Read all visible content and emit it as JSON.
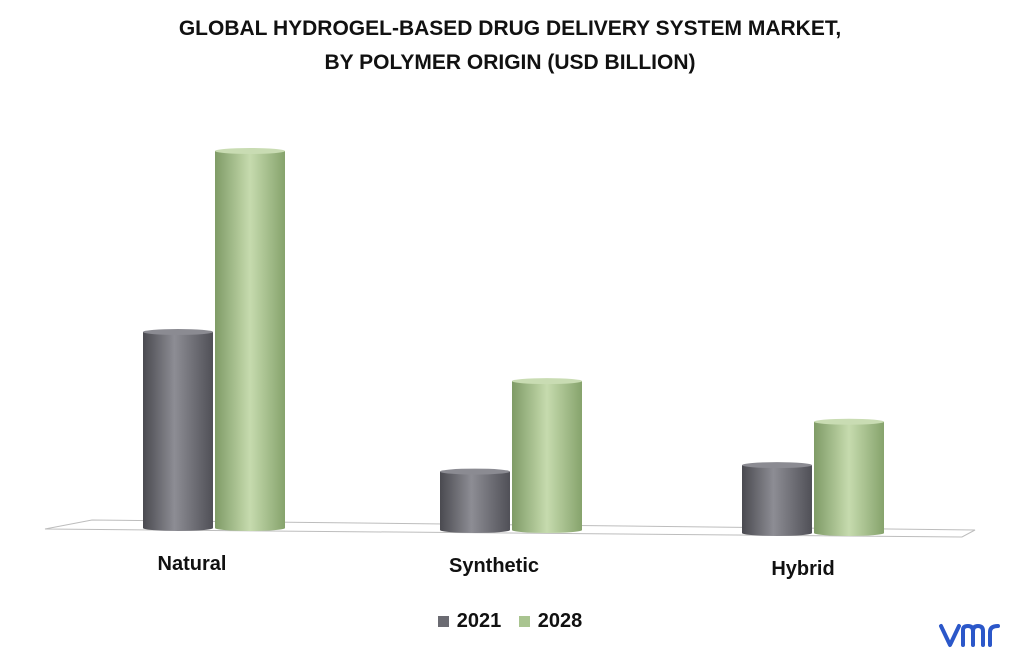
{
  "title": {
    "line1": "GLOBAL HYDROGEL-BASED DRUG DELIVERY SYSTEM MARKET,",
    "line2": "BY POLYMER ORIGIN (USD BILLION)"
  },
  "colors": {
    "series_2021": "#6b6b72",
    "series_2028": "#a9c490",
    "floor": "#d9d9d9"
  },
  "logo": {
    "text": "vmr",
    "color": "#2b57c9"
  },
  "chart_data": {
    "type": "bar",
    "title": "GLOBAL HYDROGEL-BASED DRUG DELIVERY SYSTEM MARKET, BY POLYMER ORIGIN (USD BILLION)",
    "categories": [
      "Natural",
      "Synthetic",
      "Hybrid"
    ],
    "series": [
      {
        "name": "2021",
        "values": [
          5.2,
          1.55,
          1.8
        ]
      },
      {
        "name": "2028",
        "values": [
          10.0,
          3.95,
          2.95
        ]
      }
    ],
    "xlabel": "",
    "ylabel": "",
    "ylim": [
      0,
      10.5
    ],
    "grid": false,
    "legend": "bottom-center"
  }
}
